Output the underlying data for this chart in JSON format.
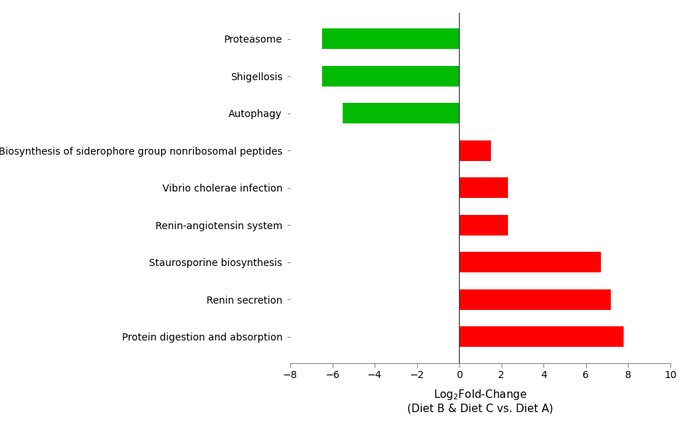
{
  "categories": [
    "Protein digestion and absorption",
    "Renin secretion",
    "Staurosporine biosynthesis",
    "Renin-angiotensin system",
    "Vibrio cholerae infection",
    "Biosynthesis of siderophore group nonribosomal peptides",
    "Autophagy",
    "Shigellosis",
    "Proteasome"
  ],
  "values": [
    7.8,
    7.2,
    6.7,
    2.3,
    2.3,
    1.5,
    -5.5,
    -6.5,
    -6.5
  ],
  "colors": [
    "#ff0000",
    "#ff0000",
    "#ff0000",
    "#ff0000",
    "#ff0000",
    "#ff0000",
    "#00bb00",
    "#00bb00",
    "#00bb00"
  ],
  "xlim": [
    -8,
    10
  ],
  "xticks": [
    -8,
    -6,
    -4,
    -2,
    0,
    2,
    4,
    6,
    8,
    10
  ],
  "background_color": "#ffffff",
  "bar_height": 0.55,
  "label_fontsize": 10,
  "axis_label_fontsize": 11,
  "tick_fontsize": 10,
  "spine_color": "#888888"
}
